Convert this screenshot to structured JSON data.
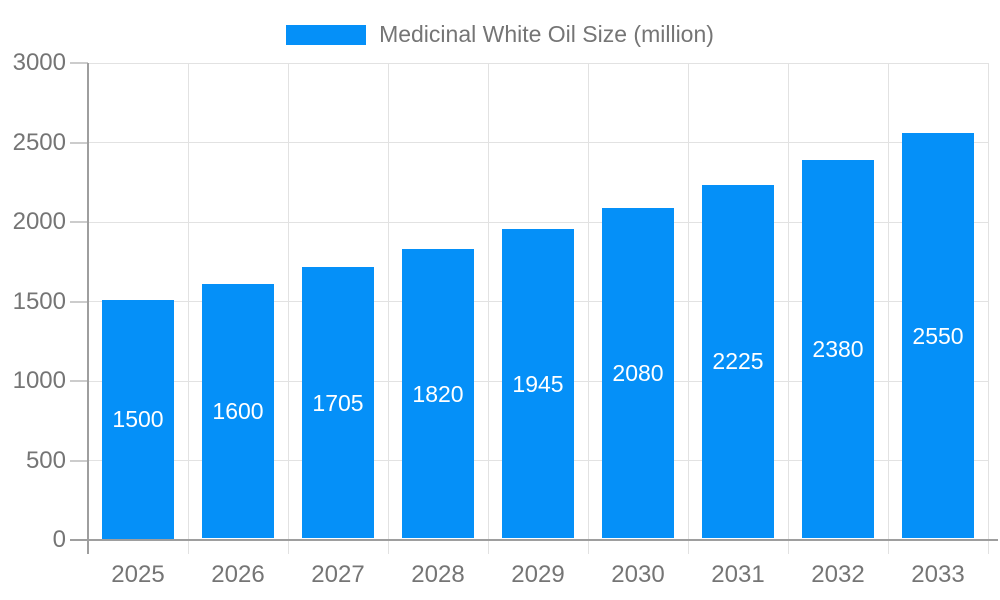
{
  "legend": {
    "label": "Medicinal White Oil Size (million)"
  },
  "colors": {
    "bar": "#0590f8",
    "bar_label": "#ffffff",
    "axis": "#9e9e9e",
    "grid": "#e2e2e2",
    "tick": "#cccccc",
    "tick_label": "#757575",
    "background": "#ffffff"
  },
  "chart_data": {
    "type": "bar",
    "title": "Medicinal White Oil Size (million)",
    "categories": [
      "2025",
      "2026",
      "2027",
      "2028",
      "2029",
      "2030",
      "2031",
      "2032",
      "2033"
    ],
    "values": [
      1500,
      1600,
      1705,
      1820,
      1945,
      2080,
      2225,
      2380,
      2550
    ],
    "series_name": "Medicinal White Oil Size (million)",
    "xlabel": "",
    "ylabel": "",
    "ylim": [
      0,
      3000
    ],
    "ytick_interval": 500,
    "ytick_labels": [
      "0",
      "500",
      "1000",
      "1500",
      "2000",
      "2500",
      "3000"
    ],
    "grid": true,
    "legend_position": "top",
    "bar_value_labels_shown": true,
    "bar_value_label_position": "inside-center"
  }
}
